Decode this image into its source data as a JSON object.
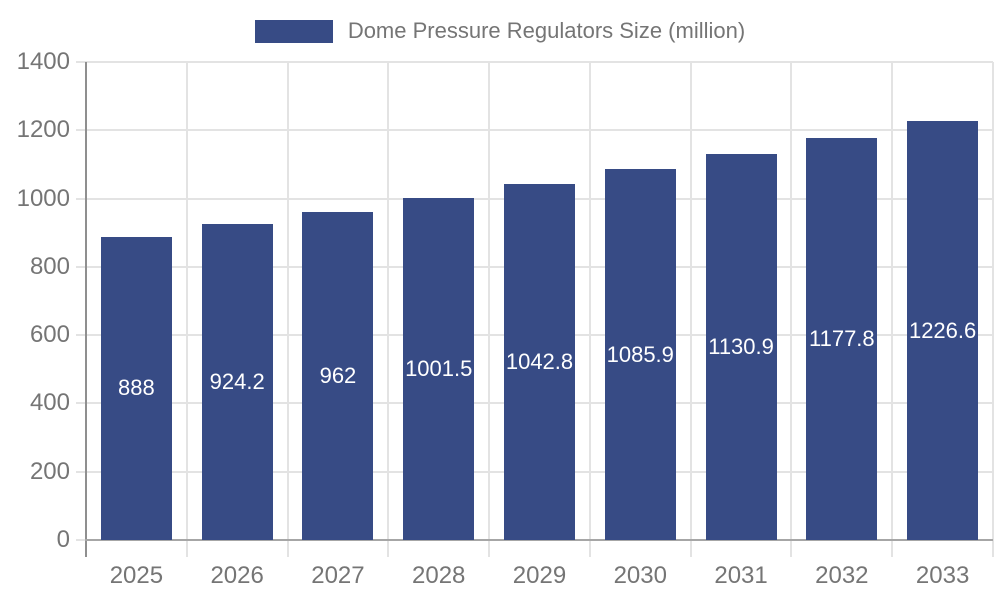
{
  "chart_data": {
    "type": "bar",
    "title": "Dome Pressure Regulators Size (million)",
    "categories": [
      "2025",
      "2026",
      "2027",
      "2028",
      "2029",
      "2030",
      "2031",
      "2032",
      "2033"
    ],
    "values": [
      888,
      924.2,
      962,
      1001.5,
      1042.8,
      1085.9,
      1130.9,
      1177.8,
      1226.6
    ],
    "xlabel": "",
    "ylabel": "",
    "ylim": [
      0,
      1400
    ],
    "yticks": [
      0,
      200,
      400,
      600,
      800,
      1000,
      1200,
      1400
    ],
    "grid": true,
    "legend_position": "top-center",
    "bar_color": "#374b85",
    "grid_color": "#e3e3e3",
    "y_axis_color": "#8f8f8f",
    "x_axis_color": "#a6a6a6",
    "tick_label_color": "#757575",
    "value_label_color": "#ffffff",
    "background_color": "#ffffff"
  }
}
